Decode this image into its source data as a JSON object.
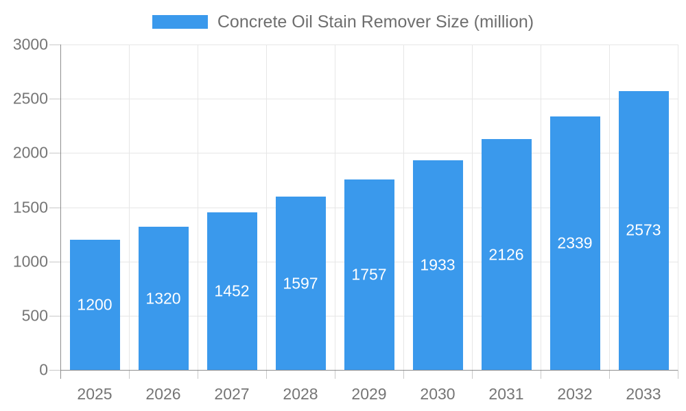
{
  "chart_data": {
    "type": "bar",
    "title": "Concrete Oil Stain Remover Size (million)",
    "categories": [
      "2025",
      "2026",
      "2027",
      "2028",
      "2029",
      "2030",
      "2031",
      "2032",
      "2033"
    ],
    "values": [
      1200,
      1320,
      1452,
      1597,
      1757,
      1933,
      2126,
      2339,
      2573
    ],
    "xlabel": "",
    "ylabel": "",
    "ylim": [
      0,
      3000
    ],
    "ytick_step": 500,
    "ytick_labels": [
      "0",
      "500",
      "1000",
      "1500",
      "2000",
      "2500",
      "3000"
    ],
    "grid": true,
    "legend_position": "top",
    "colors": {
      "bar": "#3a99ec",
      "value_label": "#ffffff",
      "axis_text": "#757575",
      "legend_text": "#6e6e6e",
      "gridline": "#e6e6e6",
      "axis_line": "#8c8c8c",
      "tick": "#c8c8c8",
      "background": "#ffffff"
    }
  }
}
